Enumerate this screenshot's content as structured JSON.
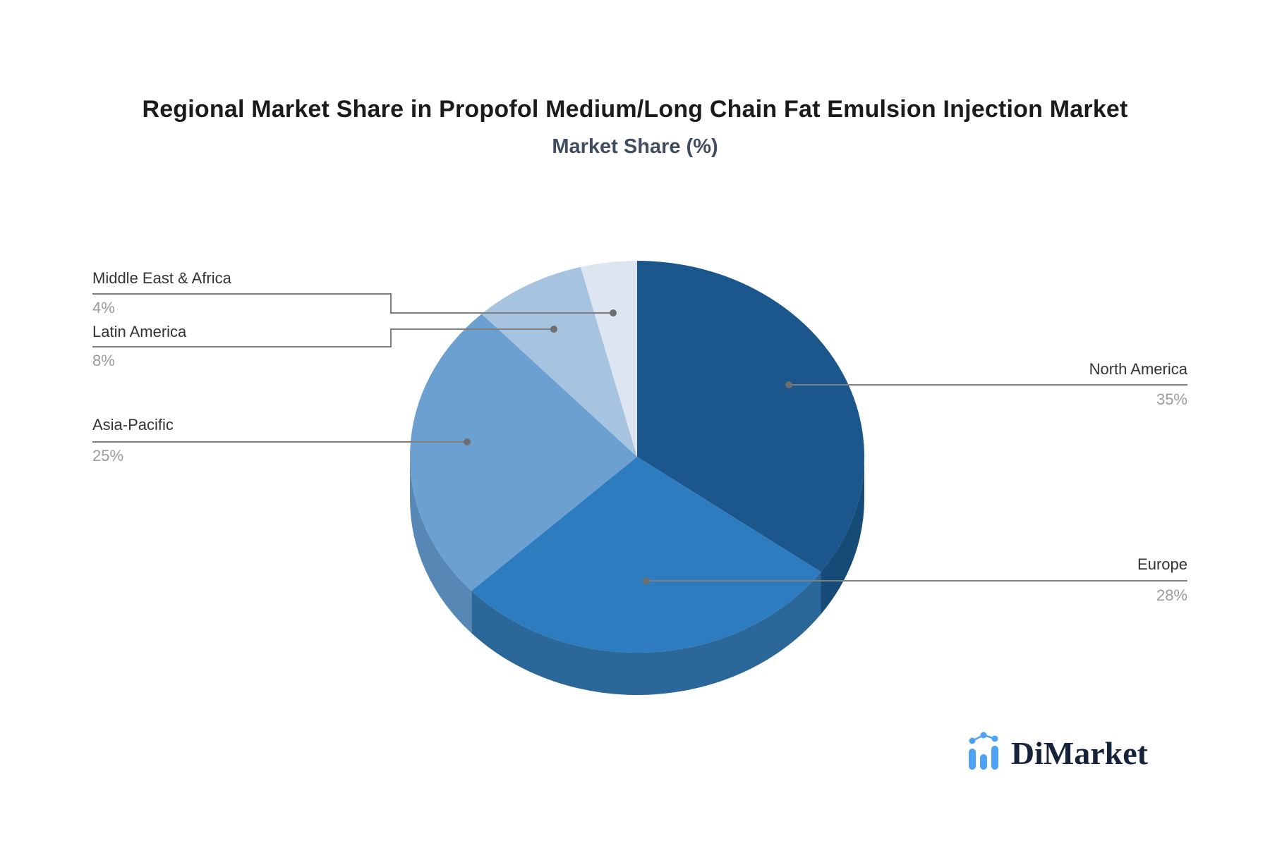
{
  "chart_data": {
    "type": "pie",
    "title": "Regional Market Share in Propofol Medium/Long Chain Fat Emulsion Injection Market",
    "subtitle": "Market Share (%)",
    "unit": "%",
    "direction": "clockwise",
    "start_angle_deg": 0,
    "style": "3d-pie",
    "legend_position": "callout-labels",
    "slices": [
      {
        "label": "North America",
        "value": 35,
        "display": "35%",
        "color": "#1b568c",
        "side_color": "#164a77"
      },
      {
        "label": "Europe",
        "value": 28,
        "display": "28%",
        "color": "#2e7cc0",
        "side_color": "#2b6899"
      },
      {
        "label": "Asia-Pacific",
        "value": 25,
        "display": "25%",
        "color": "#6ba0d1",
        "side_color": "#5788b5"
      },
      {
        "label": "Latin America",
        "value": 8,
        "display": "8%",
        "color": "#a6c3e0",
        "side_color": "#8fa9c3"
      },
      {
        "label": "Middle East & Africa",
        "value": 4,
        "display": "4%",
        "color": "#dde5f0",
        "side_color": "#c3cedd"
      }
    ]
  },
  "colors": {
    "background": "#ffffff",
    "title": "#1b1b1b",
    "subtitle": "#3f4d5f",
    "label_name": "#333333",
    "label_value": "#9b9b9b",
    "connector_line": "#7f7f7f",
    "connector_dot": "#6f6f6f"
  },
  "logo": {
    "text": "DiMarket",
    "icon": "bar-chart-trend-icon",
    "icon_color": "#4da2f5",
    "text_color": "#16233a"
  }
}
